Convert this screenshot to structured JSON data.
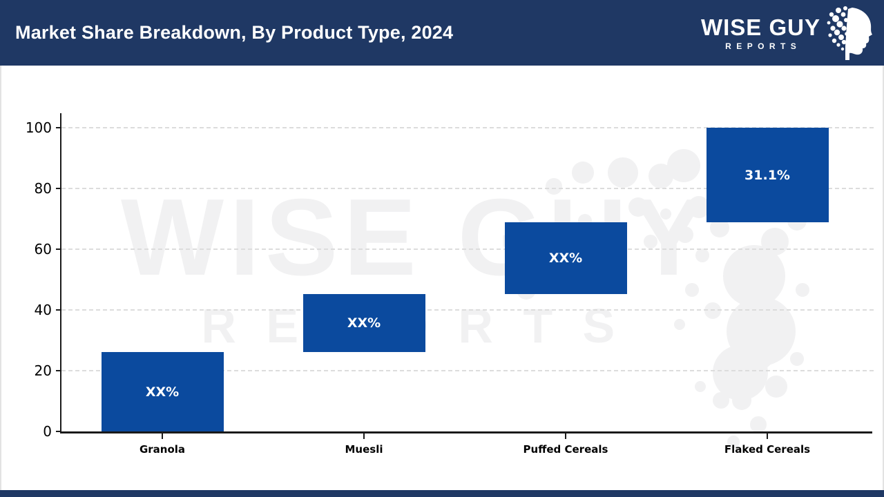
{
  "colors": {
    "header_bg": "#1f3864",
    "footer_bg": "#1f3864",
    "bar_blue": "#0b4a9e",
    "watermark": "#f1f1f2"
  },
  "header": {
    "title": "Market Share Breakdown, By Product Type, 2024",
    "logo": {
      "line1": "WISE GUY",
      "line2": "REPORTS"
    }
  },
  "watermark": {
    "line1": "WISE GUY",
    "line2": "REPORTS"
  },
  "chart_data": {
    "type": "bar",
    "subtype": "waterfall",
    "title": "Market Share Breakdown, By Product Type, 2024",
    "categories": [
      "Granola",
      "Muesli",
      "Puffed Cereals",
      "Flaked Cereals"
    ],
    "segments": [
      {
        "category": "Granola",
        "start": 0,
        "end": 26.1,
        "label": "XX%"
      },
      {
        "category": "Muesli",
        "start": 26.1,
        "end": 45.2,
        "label": "XX%"
      },
      {
        "category": "Puffed Cereals",
        "start": 45.2,
        "end": 68.8,
        "label": "XX%"
      },
      {
        "category": "Flaked Cereals",
        "start": 68.8,
        "end": 99.9,
        "label": "31.1%"
      }
    ],
    "xlabel": "",
    "ylabel": "",
    "ylim": [
      0,
      100
    ],
    "yticks": [
      0,
      20,
      40,
      60,
      80,
      100
    ],
    "grid": "horizontal-dashed",
    "legend": "none",
    "bar_color": "#0b4a9e",
    "bar_label_color": "#ffffff"
  }
}
